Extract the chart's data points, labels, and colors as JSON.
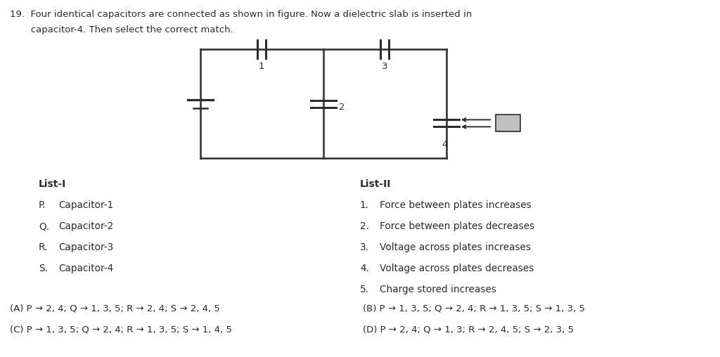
{
  "bg_color": "#ffffff",
  "text_color": "#2b2b2b",
  "line_color": "#2b2b2b",
  "title_line1": "19.  Four identical capacitors are connected as shown in figure. Now a dielectric slab is inserted in",
  "title_line2": "       capacitor-4. Then select the correct match.",
  "list1_header": "List-I",
  "list2_header": "List-II",
  "list1_items": [
    [
      "P.",
      "Capacitor-1"
    ],
    [
      "Q.",
      "Capacitor-2"
    ],
    [
      "R.",
      "Capacitor-3"
    ],
    [
      "S.",
      "Capacitor-4"
    ]
  ],
  "list2_items": [
    [
      "1.",
      "Force between plates increases"
    ],
    [
      "2.",
      "Force between plates decreases"
    ],
    [
      "3.",
      "Voltage across plates increases"
    ],
    [
      "4.",
      "Voltage across plates decreases"
    ],
    [
      "5.",
      "Charge stored increases"
    ]
  ],
  "opt_A": "(A) P → 2, 4; Q → 1, 3, 5; R → 2, 4; S → 2, 4, 5",
  "opt_B": "(B) P → 1, 3, 5; Q → 2, 4; R → 1, 3, 5; S → 1, 3, 5",
  "opt_C": "(C) P → 1, 3, 5; Q → 2, 4; R → 1, 3, 5; S → 1, 4, 5",
  "opt_D": "(D) P → 2, 4; Q → 1, 3; R → 2, 4, 5; S → 2, 3, 5"
}
